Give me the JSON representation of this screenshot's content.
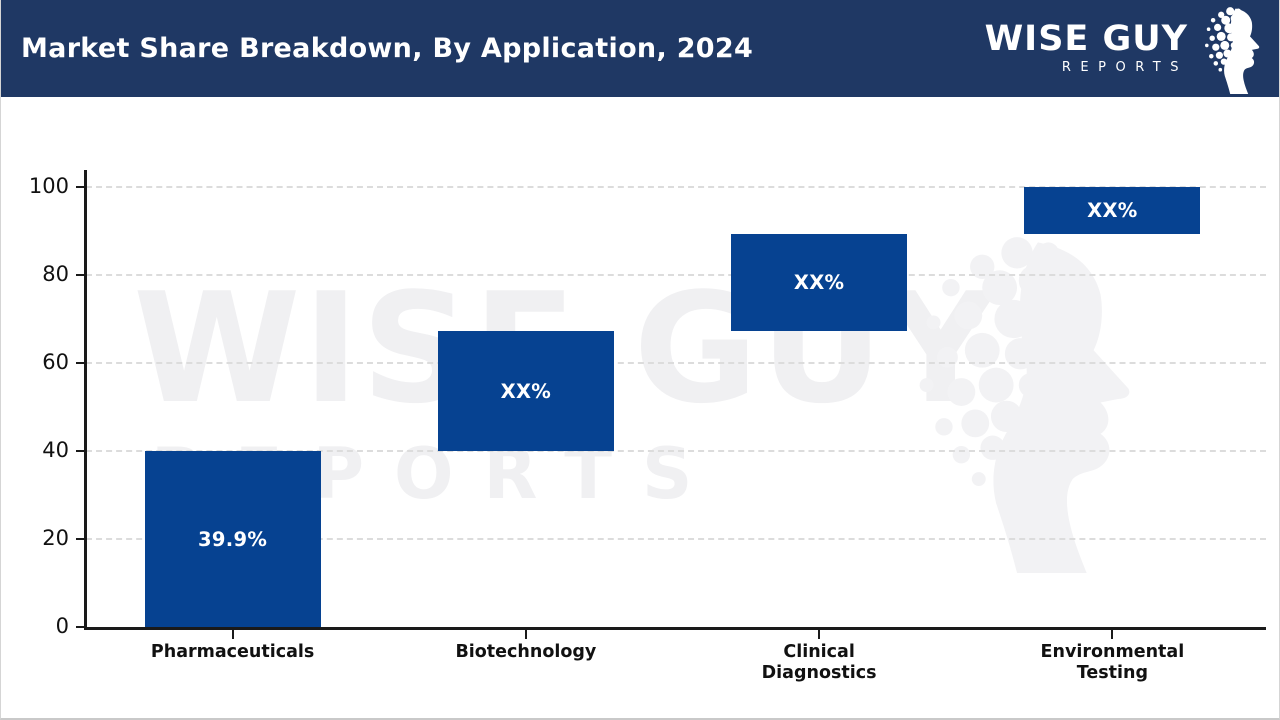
{
  "header": {
    "title": "Market Share Breakdown, By Application, 2024",
    "logo": {
      "line1": "WISE GUY",
      "line2": "REPORTS"
    }
  },
  "watermark": {
    "line1": "WISE GUY",
    "line2": "REPORTS"
  },
  "colors": {
    "header_bg": "#1f3864",
    "bar": "#064291",
    "bar_label_text": "#ffffff",
    "grid": "#dcdcdc",
    "axis": "#1a1a1a",
    "watermark": "#f0f0f2"
  },
  "chart_data": {
    "type": "bar",
    "subtype": "waterfall-cumulative",
    "title": "Market Share Breakdown, By Application, 2024",
    "categories": [
      "Pharmaceuticals",
      "Biotechnology",
      "Clinical Diagnostics",
      "Environmental Testing"
    ],
    "category_label_lines": [
      [
        "Pharmaceuticals"
      ],
      [
        "Biotechnology"
      ],
      [
        "Clinical",
        "Diagnostics"
      ],
      [
        "Environmental",
        "Testing"
      ]
    ],
    "segments": [
      {
        "category": "Pharmaceuticals",
        "start": 0,
        "end": 39.9,
        "display_label": "39.9%"
      },
      {
        "category": "Biotechnology",
        "start": 39.9,
        "end": 67.2,
        "display_label": "XX%"
      },
      {
        "category": "Clinical Diagnostics",
        "start": 67.2,
        "end": 89.3,
        "display_label": "XX%"
      },
      {
        "category": "Environmental Testing",
        "start": 89.3,
        "end": 100,
        "display_label": "XX%"
      }
    ],
    "xlabel": "",
    "ylabel": "",
    "ylim": [
      0,
      100
    ],
    "yticks": [
      0,
      20,
      40,
      60,
      80,
      100
    ],
    "grid": "horizontal-dashed",
    "legend": "none"
  }
}
